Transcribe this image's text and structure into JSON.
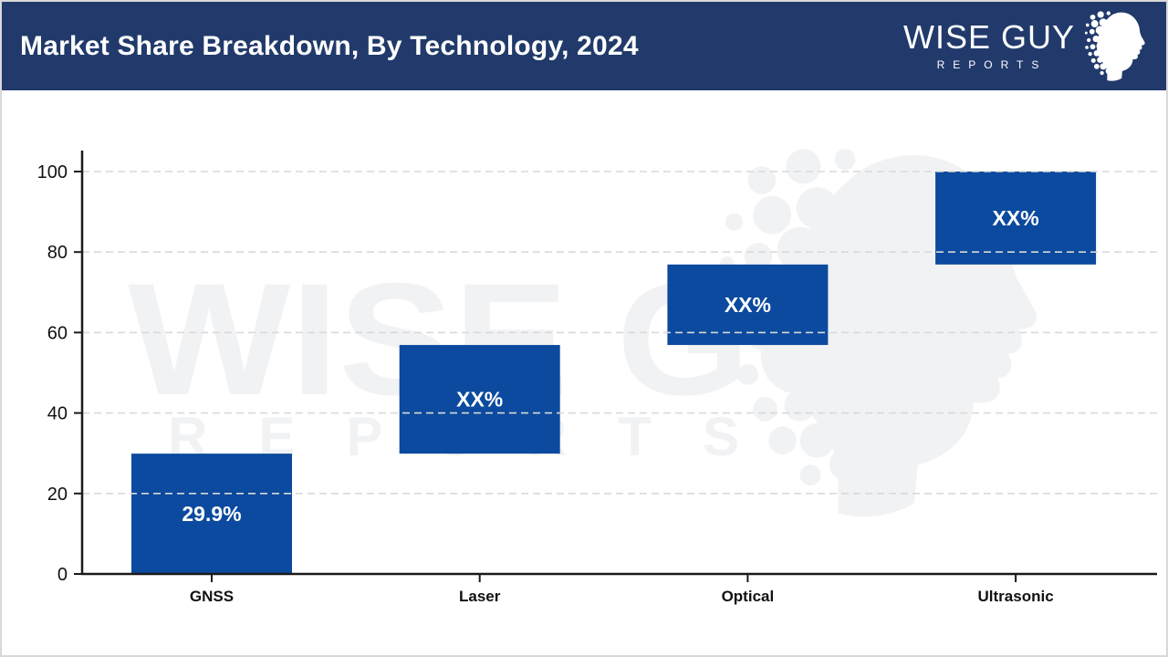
{
  "header": {
    "title": "Market Share Breakdown, By Technology, 2024",
    "bg_color": "#213a6b",
    "logo": {
      "wordmark": "WISE GUY",
      "sub": "REPORTS"
    }
  },
  "watermark": {
    "wordmark": "WISE GUY",
    "sub": "REPORTS",
    "color": "#f1f2f4"
  },
  "chart_data": {
    "type": "bar",
    "variant": "waterfall",
    "title": "Market Share Breakdown, By Technology, 2024",
    "categories": [
      "GNSS",
      "Laser",
      "Optical",
      "Ultrasonic"
    ],
    "segments": [
      {
        "category": "GNSS",
        "start": 0,
        "end": 29.9,
        "label": "29.9%"
      },
      {
        "category": "Laser",
        "start": 29.9,
        "end": 56.9,
        "label": "XX%"
      },
      {
        "category": "Optical",
        "start": 56.9,
        "end": 76.9,
        "label": "XX%"
      },
      {
        "category": "Ultrasonic",
        "start": 76.9,
        "end": 100,
        "label": "XX%"
      }
    ],
    "ylim": [
      0,
      100
    ],
    "yticks": [
      0,
      20,
      40,
      60,
      80,
      100
    ],
    "grid": "horizontal-dashed",
    "legend": "none",
    "bar_color": "#0b4a9e",
    "bar_label_color": "#ffffff",
    "axis_color": "#1a1a1a",
    "grid_color": "#d9d9d9",
    "tick_label_color": "#111111"
  }
}
